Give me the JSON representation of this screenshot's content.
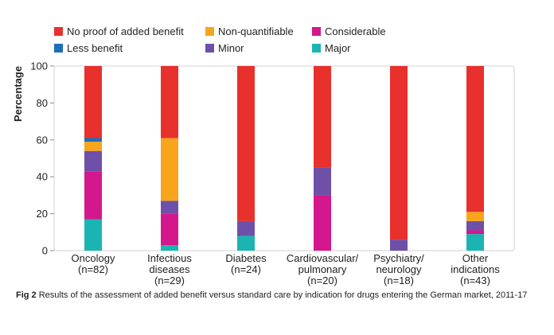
{
  "chart_data": {
    "type": "bar",
    "stacked": true,
    "ylabel": "Percentage",
    "ylim": [
      0,
      100
    ],
    "yticks": [
      0,
      20,
      40,
      60,
      80,
      100
    ],
    "grid": false,
    "legend_placement": "top",
    "categories": [
      [
        "Oncology",
        "(n=82)"
      ],
      [
        "Infectious",
        "diseases",
        "(n=29)"
      ],
      [
        "Diabetes",
        "(n=24)"
      ],
      [
        "Cardiovascular/",
        "pulmonary",
        "(n=20)"
      ],
      [
        "Psychiatry/",
        "neurology",
        "(n=18)"
      ],
      [
        "Other",
        "indications",
        "(n=43)"
      ]
    ],
    "series": [
      {
        "name": "Major",
        "color": "#1ab5b3",
        "values": [
          17,
          3,
          8,
          0,
          0,
          9
        ]
      },
      {
        "name": "Considerable",
        "color": "#d4178c",
        "values": [
          26,
          17,
          0,
          30,
          0,
          2
        ]
      },
      {
        "name": "Minor",
        "color": "#6e50a8",
        "values": [
          11,
          7,
          8,
          15,
          6,
          5
        ]
      },
      {
        "name": "Non-quantifiable",
        "color": "#f8a51c",
        "values": [
          5,
          34,
          0,
          0,
          0,
          5
        ]
      },
      {
        "name": "Less benefit",
        "color": "#1d6fb8",
        "values": [
          2,
          0,
          0,
          0,
          0,
          0
        ]
      },
      {
        "name": "No proof of added benefit",
        "color": "#e8302c",
        "values": [
          39,
          39,
          84,
          55,
          94,
          79
        ]
      }
    ],
    "legend_order": [
      "No proof of added benefit",
      "Non-quantifiable",
      "Considerable",
      "Less benefit",
      "Minor",
      "Major"
    ]
  },
  "caption": {
    "fig_label": "Fig 2",
    "text": "Results of the assessment of added benefit versus standard care by indication for drugs entering the German market, 2011-17"
  }
}
